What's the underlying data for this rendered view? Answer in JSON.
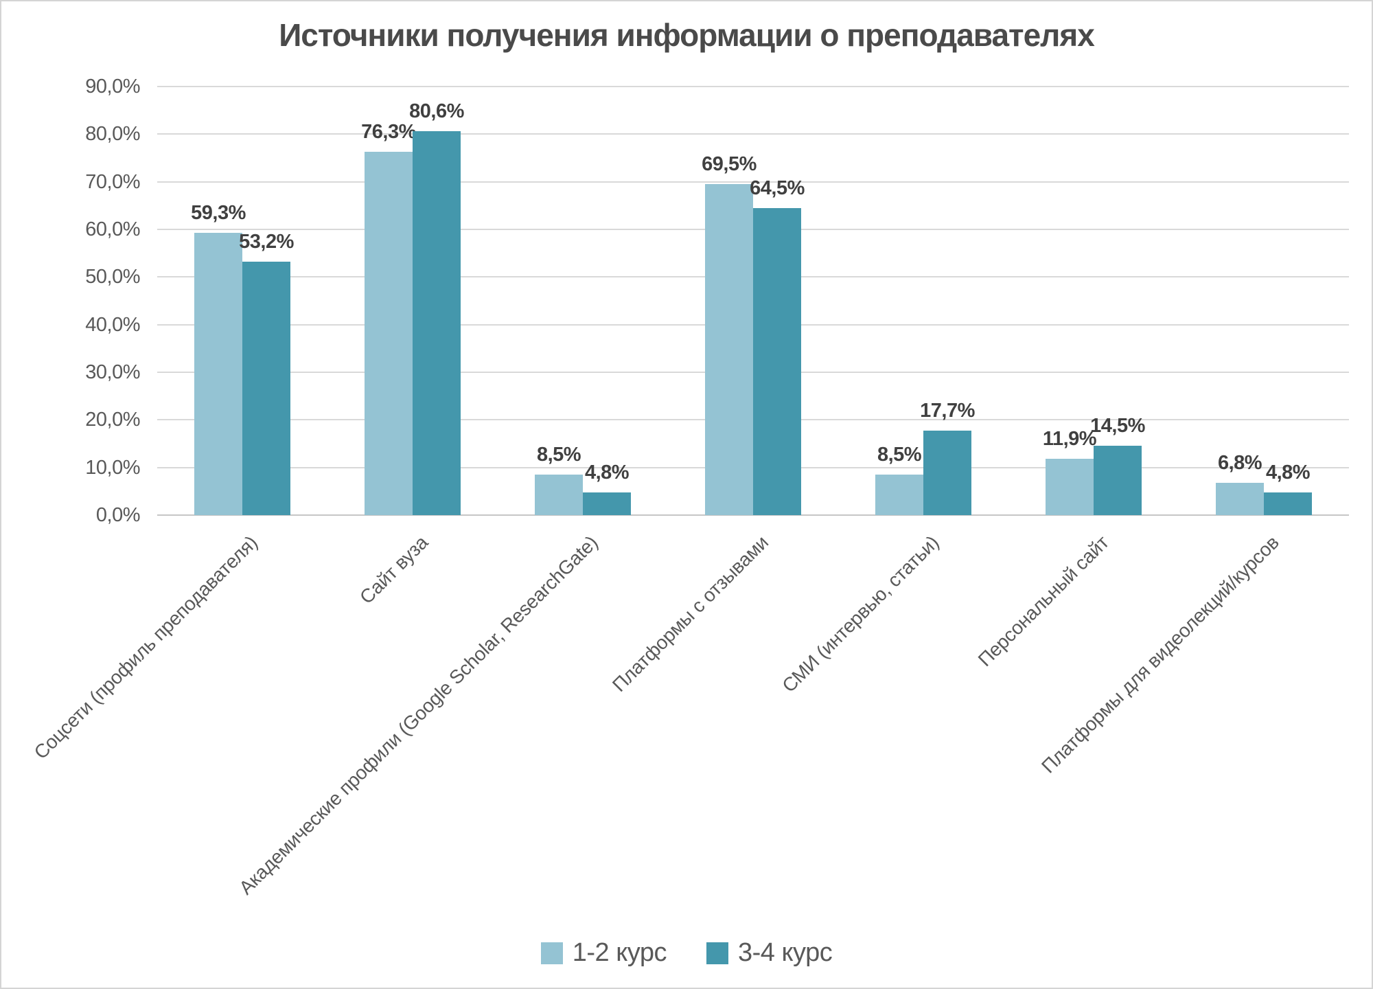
{
  "chart_data": {
    "type": "bar",
    "title": "Источники получения информации о преподавателях",
    "categories": [
      "Соцсети (профиль преподавателя)",
      "Сайт вуза",
      "Академические профили (Google Scholar, ResearchGate)",
      "Платформы с отзывами",
      "СМИ (интервью, статьи)",
      "Персональный сайт",
      "Платформы для видеолекций/курсов"
    ],
    "series": [
      {
        "name": "1-2 курс",
        "color": "#94c3d3",
        "values": [
          59.3,
          76.3,
          8.5,
          69.5,
          8.5,
          11.9,
          6.8
        ],
        "labels": [
          "59,3%",
          "76,3%",
          "8,5%",
          "69,5%",
          "8,5%",
          "11,9%",
          "6,8%"
        ]
      },
      {
        "name": "3-4 курс",
        "color": "#4497ac",
        "values": [
          53.2,
          80.6,
          4.8,
          64.5,
          17.7,
          14.5,
          4.8
        ],
        "labels": [
          "53,2%",
          "80,6%",
          "4,8%",
          "64,5%",
          "17,7%",
          "14,5%",
          "4,8%"
        ]
      }
    ],
    "ylim": [
      0,
      90
    ],
    "ytick_step": 10,
    "yticklabels": [
      "0,0%",
      "10,0%",
      "20,0%",
      "30,0%",
      "40,0%",
      "50,0%",
      "60,0%",
      "70,0%",
      "80,0%",
      "90,0%"
    ],
    "grid": "horizontal",
    "legend_position": "bottom",
    "xlabel": "",
    "ylabel": ""
  },
  "colors": {
    "gridline": "#d9d9d9",
    "axis_baseline": "#c6c6c6",
    "tick_text": "#595959",
    "value_text": "#404040",
    "title_text": "#4a4a4a",
    "frame_border": "#d4d4d4",
    "background": "#ffffff"
  }
}
